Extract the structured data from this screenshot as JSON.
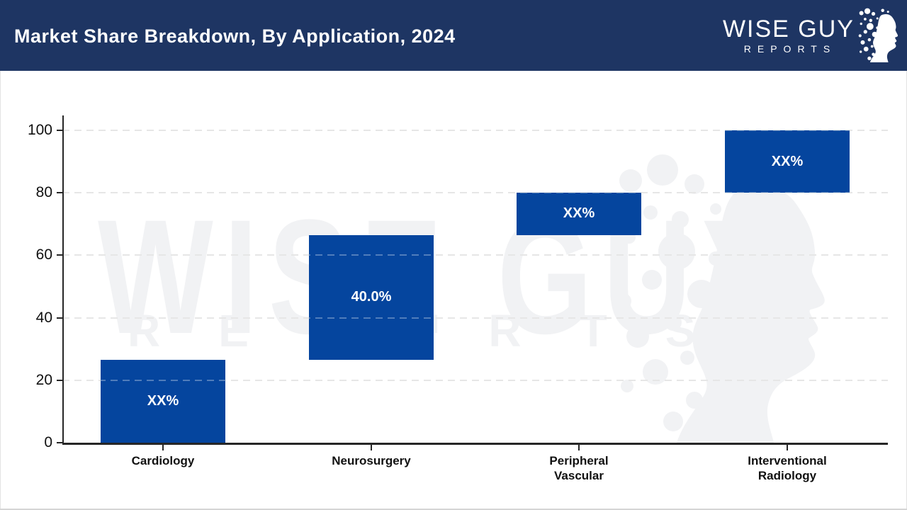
{
  "header": {
    "title": "Market Share Breakdown, By Application, 2024",
    "logo": {
      "line1": "WISE GUY",
      "line2": "REPORTS",
      "icon": "face-profile-dots"
    }
  },
  "watermark": {
    "line1": "WISE GUY",
    "line2": "REPORTS"
  },
  "colors": {
    "header_bg": "#1e3563",
    "bar": "#05459e",
    "watermark": "#f1f2f4",
    "gridline": "#dcdcdc",
    "axis": "#262626",
    "bar_label_text": "#ffffff"
  },
  "chart_data": {
    "type": "bar",
    "subtype": "waterfall",
    "title": "Market Share Breakdown, By Application, 2024",
    "categories": [
      "Cardiology",
      "Neurosurgery",
      "Peripheral\nVascular",
      "Interventional\nRadiology"
    ],
    "bars": [
      {
        "category": "Cardiology",
        "start": 0,
        "end": 26.5,
        "label": "XX%"
      },
      {
        "category": "Neurosurgery",
        "start": 26.5,
        "end": 66.5,
        "label": "40.0%"
      },
      {
        "category": "Peripheral\nVascular",
        "start": 66.5,
        "end": 80,
        "label": "XX%"
      },
      {
        "category": "Interventional\nRadiology",
        "start": 80,
        "end": 100,
        "label": "XX%"
      }
    ],
    "ylim": [
      0,
      100
    ],
    "yticks": [
      0,
      20,
      40,
      60,
      80,
      100
    ],
    "xlabel": "",
    "ylabel": "",
    "grid": "dashed-horizontal",
    "legend": null
  }
}
